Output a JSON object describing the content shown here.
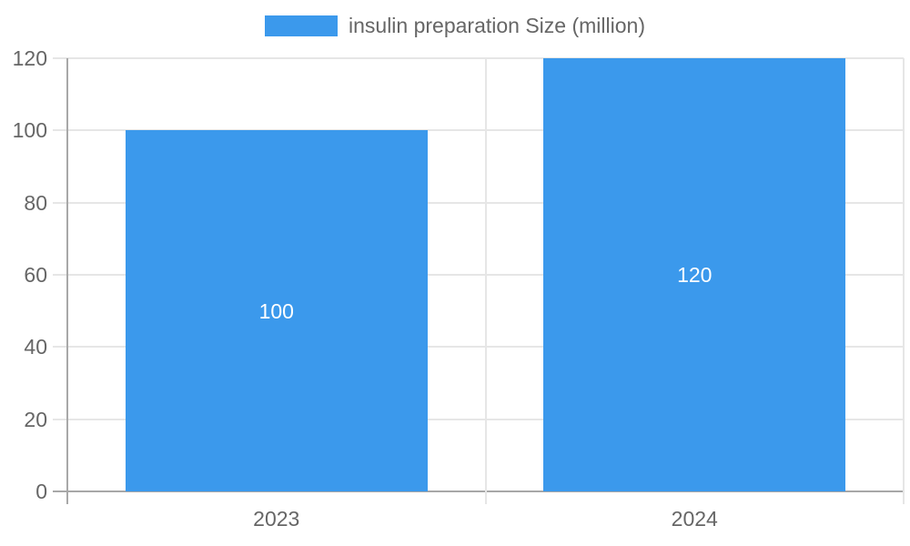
{
  "legend": {
    "label": "insulin preparation Size (million)",
    "swatch_color": "#3B99EC"
  },
  "chart_data": {
    "type": "bar",
    "title": "",
    "categories": [
      "2023",
      "2024"
    ],
    "values": [
      100,
      120
    ],
    "series_name": "insulin preparation Size (million)",
    "value_labels": [
      "100",
      "120"
    ],
    "xlabel": "",
    "ylabel": "",
    "ylim": [
      0,
      120
    ],
    "yticks": [
      0,
      20,
      40,
      60,
      80,
      100,
      120
    ],
    "grid": true,
    "legend_position": "top",
    "bar_color": "#3B99EC",
    "value_label_color": "#FFFFFF",
    "axis_text_color": "#666666",
    "gridline_color": "#E6E6E6",
    "axis_line_color": "#A8A8A8"
  }
}
